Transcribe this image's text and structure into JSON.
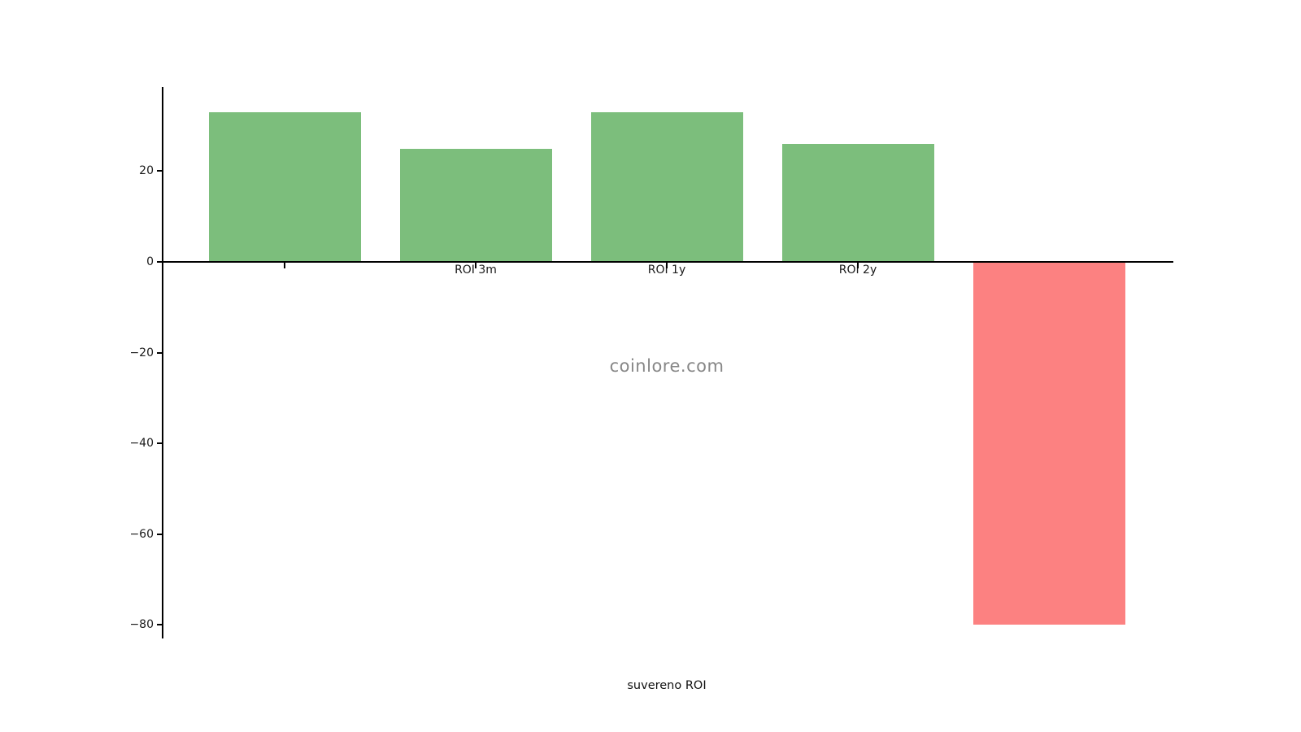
{
  "chart_data": {
    "type": "bar",
    "title": "",
    "xlabel": "suvereno ROI",
    "ylabel": "",
    "watermark": "coinlore.com",
    "categories": [
      "",
      "ROI 3m",
      "ROI 1y",
      "ROI 2y",
      ""
    ],
    "values": [
      33,
      25,
      33,
      26,
      -80
    ],
    "y_ticks": [
      {
        "value": 20,
        "label": "20"
      },
      {
        "value": 0,
        "label": "0"
      },
      {
        "value": -20,
        "label": "−20"
      },
      {
        "value": -40,
        "label": "−40"
      },
      {
        "value": -60,
        "label": "−60"
      },
      {
        "value": -80,
        "label": "−80"
      }
    ],
    "ylim": [
      -83,
      38.5
    ],
    "grid": false,
    "legend": null,
    "colors": {
      "positive_bar": "#7cbe7c",
      "negative_bar": "#fc8181",
      "axis": "#000000",
      "tick_label": "#1a1a1a",
      "watermark": "#878787",
      "background": "#ffffff"
    }
  }
}
